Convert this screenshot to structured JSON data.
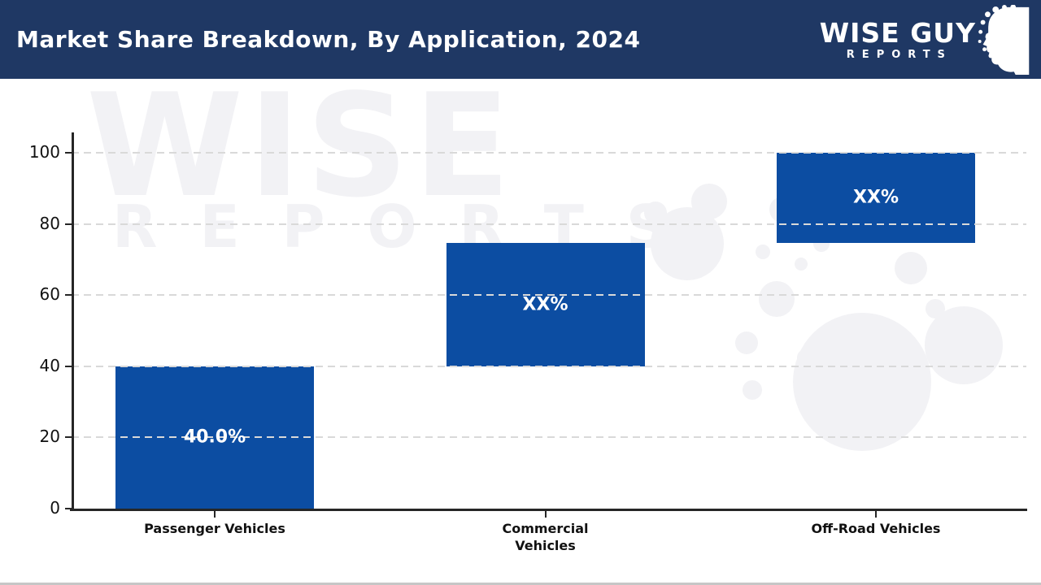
{
  "header": {
    "title": "Market Share Breakdown, By Application, 2024",
    "logo": {
      "wordmark": "WISE GUY",
      "subtext": "REPORTS"
    },
    "bg_color": "#1f3864"
  },
  "watermark": {
    "line1": "WISE",
    "line2": "REPORTS"
  },
  "chart_data": {
    "type": "bar",
    "variant": "floating-waterfall",
    "title": "Market Share Breakdown, By Application, 2024",
    "categories": [
      "Passenger Vehicles",
      "Commercial Vehicles",
      "Off-Road Vehicles"
    ],
    "category_label_lines": [
      [
        "Passenger Vehicles"
      ],
      [
        "Commercial",
        "Vehicles"
      ],
      [
        "Off-Road Vehicles"
      ]
    ],
    "segments": [
      {
        "category": "Passenger Vehicles",
        "start": 0,
        "end": 40,
        "label": "40.0%"
      },
      {
        "category": "Commercial Vehicles",
        "start": 40,
        "end": 74.7,
        "label": "XX%"
      },
      {
        "category": "Off-Road Vehicles",
        "start": 74.7,
        "end": 100,
        "label": "XX%"
      }
    ],
    "values": [
      40,
      34.7,
      25.3
    ],
    "ylim": [
      0,
      100
    ],
    "yticks": [
      0,
      20,
      40,
      60,
      80,
      100
    ],
    "grid": "horizontal-dashed",
    "legend": "none",
    "bar_color": "#0c4da2",
    "bar_label_color": "#ffffff",
    "axis_color": "#262626",
    "grid_color": "#d9d9d9"
  }
}
